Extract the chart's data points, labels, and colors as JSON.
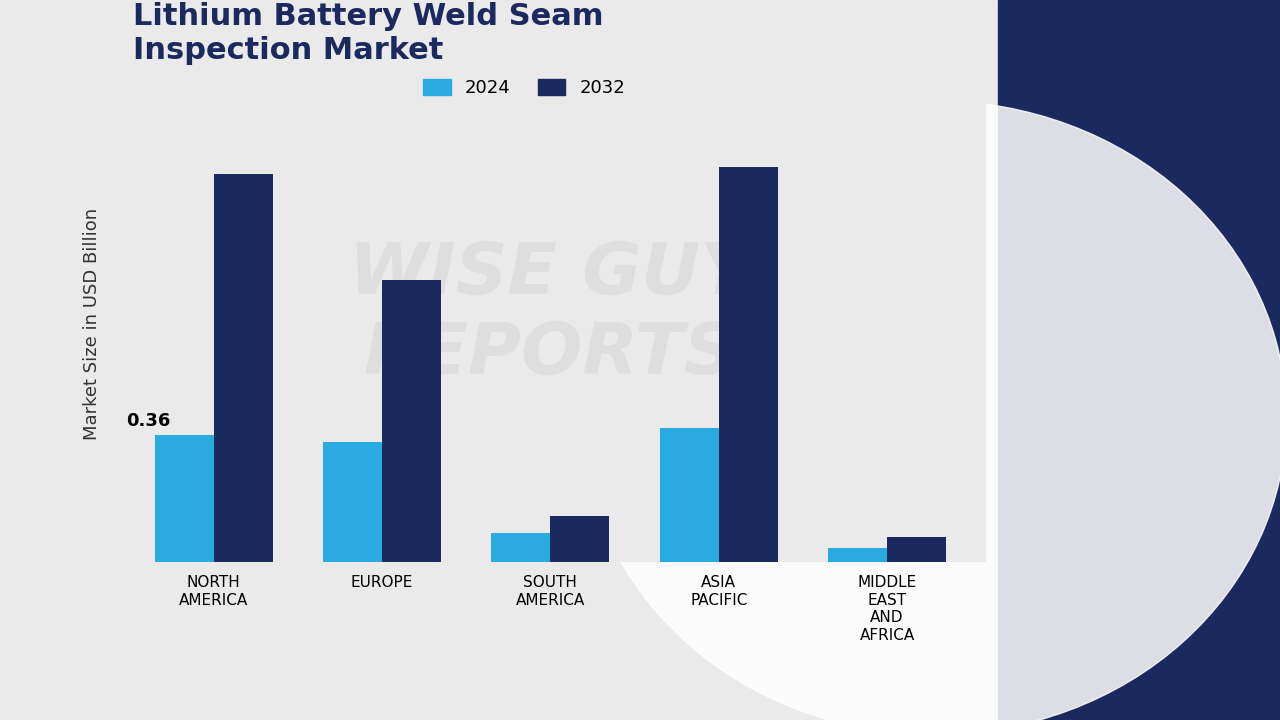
{
  "title": "Lithium Battery Weld Seam\nInspection Market",
  "ylabel": "Market Size in USD Billion",
  "categories": [
    "NORTH\nAMERICA",
    "EUROPE",
    "SOUTH\nAMERICA",
    "ASIA\nPACIFIC",
    "MIDDLE\nEAST\nAND\nAFRICA"
  ],
  "values_2024": [
    0.36,
    0.34,
    0.08,
    0.38,
    0.04
  ],
  "values_2032": [
    1.1,
    0.8,
    0.13,
    1.12,
    0.07
  ],
  "color_2024": "#29ABE2",
  "color_2032": "#1B2A5E",
  "annotation_val": "0.36",
  "annotation_region": 0,
  "background_color": "#EAEAEA",
  "title_color": "#1B2A5E",
  "ylabel_color": "#333333",
  "legend_2024": "2024",
  "legend_2032": "2032",
  "bar_width": 0.35,
  "ylim": [
    0,
    1.35
  ]
}
